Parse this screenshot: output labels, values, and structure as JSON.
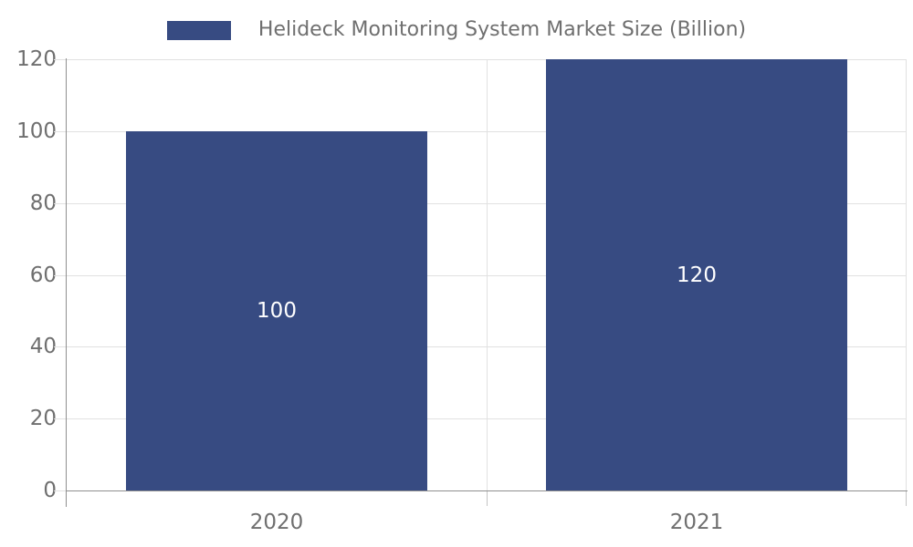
{
  "chart_data": {
    "type": "bar",
    "title": "",
    "legend": [
      "Helideck Monitoring System Market Size (Billion)"
    ],
    "legend_position": "top",
    "categories": [
      "2020",
      "2021"
    ],
    "series": [
      {
        "name": "Helideck Monitoring System Market Size (Billion)",
        "values": [
          100,
          120
        ]
      }
    ],
    "bar_labels": [
      "100",
      "120"
    ],
    "xlabel": "",
    "ylabel": "",
    "ylim": [
      0,
      120
    ],
    "yticks": [
      0,
      20,
      40,
      60,
      80,
      100,
      120
    ],
    "grid": true
  },
  "colors": {
    "bar": "#374B82",
    "grid": "#E1E1E1",
    "axis": "#8F8F8F",
    "tick": "#C4C4C4",
    "text": "#6F6F6F",
    "bar_label": "#FFFFFF",
    "background": "#FFFFFF"
  }
}
